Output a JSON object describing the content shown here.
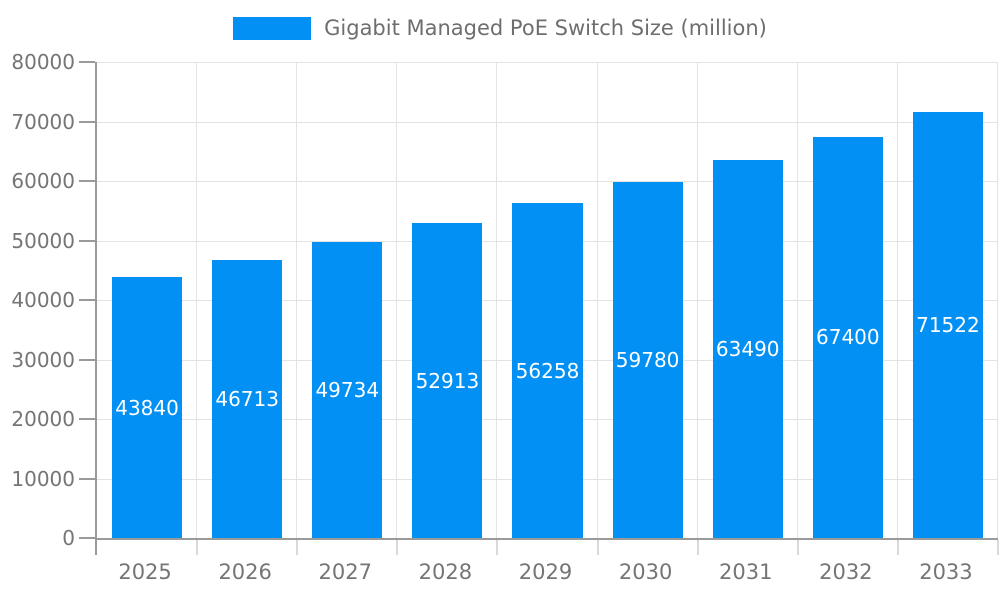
{
  "legend": {
    "label": "Gigabit Managed PoE Switch Size (million)"
  },
  "chart_data": {
    "type": "bar",
    "title": "",
    "categories": [
      "2025",
      "2026",
      "2027",
      "2028",
      "2029",
      "2030",
      "2031",
      "2032",
      "2033"
    ],
    "values": [
      43840,
      46713,
      49734,
      52913,
      56258,
      59780,
      63490,
      67400,
      71522
    ],
    "series_name": "Gigabit Managed PoE Switch Size (million)",
    "xlabel": "",
    "ylabel": "",
    "ylim": [
      0,
      80000
    ],
    "ytick_interval": 10000,
    "ytick_labels": [
      "0",
      "10000",
      "20000",
      "30000",
      "40000",
      "50000",
      "60000",
      "70000",
      "80000"
    ],
    "grid": true,
    "legend_position": "top-center",
    "value_labels": "inside-center"
  },
  "colors": {
    "bar": "#0290f5",
    "value_label": "#ffffff",
    "axis_line": "#9a9a9a",
    "gridline": "#e3e3e3",
    "tick": "#d9d9d9",
    "axis_text": "#757575",
    "legend_text": "#6e6e6e",
    "background": "#ffffff"
  }
}
